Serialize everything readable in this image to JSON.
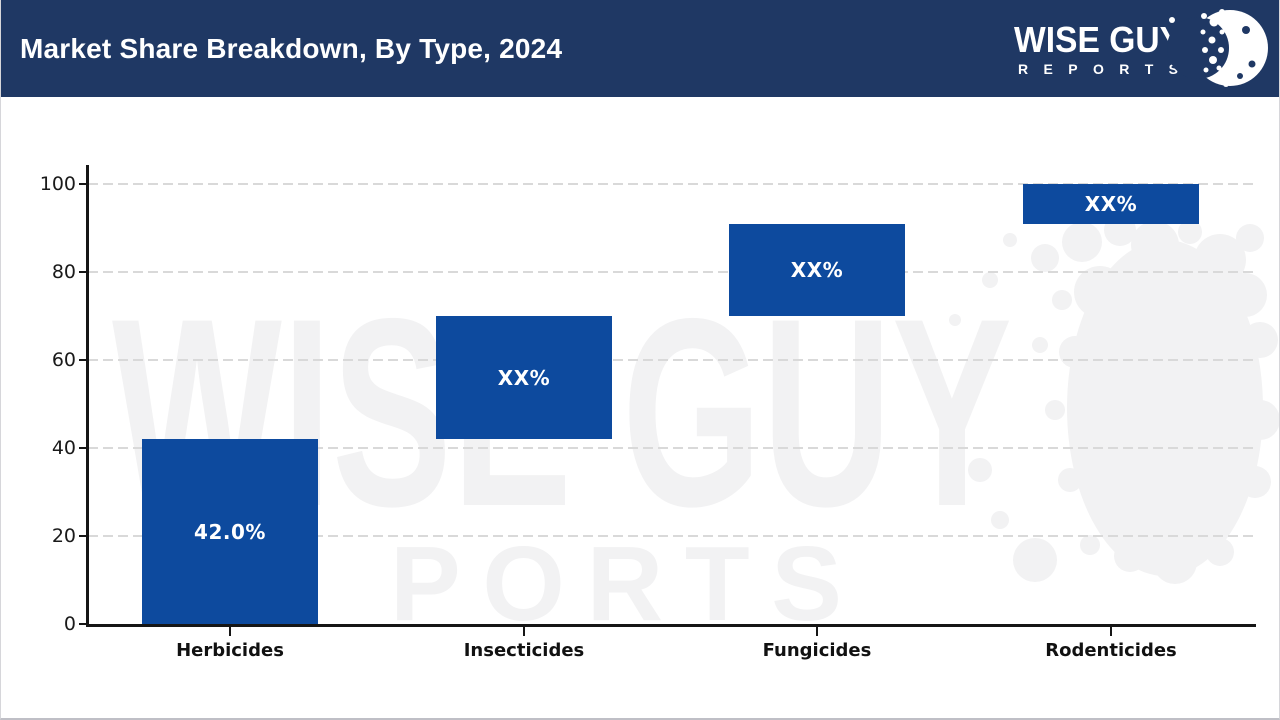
{
  "header": {
    "title": "Market Share Breakdown, By Type, 2024",
    "bg_color": "#1f3864",
    "logo": {
      "line1": "WISE GUY",
      "line2": "REPORTS"
    }
  },
  "watermark": {
    "line1": "WISE GUY",
    "line2": "PORTS"
  },
  "chart_data": {
    "type": "bar",
    "variant": "waterfall",
    "title": "Market Share Breakdown, By Type, 2024",
    "categories": [
      "Herbicides",
      "Insecticides",
      "Fungicides",
      "Rodenticides"
    ],
    "segments": [
      {
        "category": "Herbicides",
        "start": 0,
        "end": 42,
        "label": "42.0%"
      },
      {
        "category": "Insecticides",
        "start": 42,
        "end": 70,
        "label": "XX%"
      },
      {
        "category": "Fungicides",
        "start": 70,
        "end": 91,
        "label": "XX%"
      },
      {
        "category": "Rodenticides",
        "start": 91,
        "end": 100,
        "label": "XX%"
      }
    ],
    "segment_heights": [
      42,
      28,
      21,
      9
    ],
    "y_ticks": [
      0,
      20,
      40,
      60,
      80,
      100
    ],
    "ylim": [
      0,
      100
    ],
    "xlabel": "",
    "ylabel": "",
    "legend": "none",
    "grid": {
      "horizontal": true,
      "style": "dashed",
      "color": "#d9d9d9"
    },
    "bar_color": "#0d4a9e",
    "bar_label_color": "#ffffff",
    "axis_color": "#161616"
  }
}
